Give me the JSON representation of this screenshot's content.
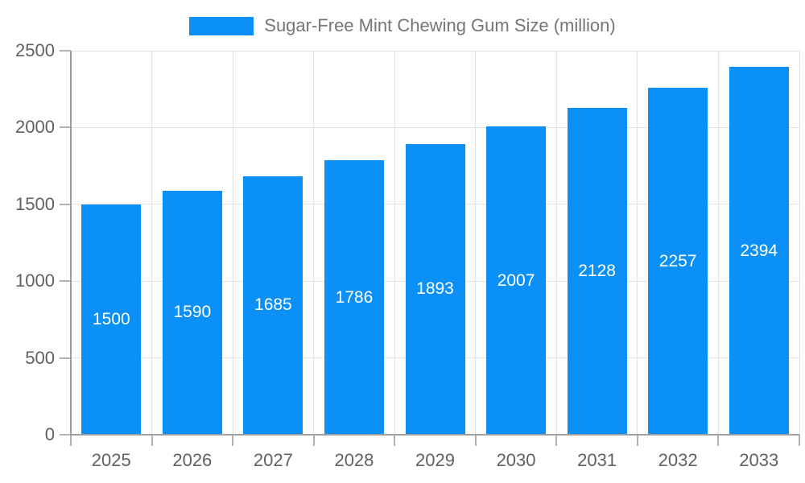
{
  "chart_data": {
    "type": "bar",
    "title": "Sugar-Free Mint Chewing Gum Size (million)",
    "legend": [
      "Sugar-Free Mint Chewing Gum Size (million)"
    ],
    "legend_position": "top-center",
    "categories": [
      "2025",
      "2026",
      "2027",
      "2028",
      "2029",
      "2030",
      "2031",
      "2032",
      "2033"
    ],
    "series": [
      {
        "name": "Sugar-Free Mint Chewing Gum Size (million)",
        "values": [
          1500,
          1590,
          1685,
          1786,
          1893,
          2007,
          2128,
          2257,
          2394
        ]
      }
    ],
    "data_labels": [
      "1500",
      "1590",
      "1685",
      "1786",
      "1893",
      "2007",
      "2128",
      "2257",
      "2394"
    ],
    "data_label_position": "inside-center",
    "xlabel": "",
    "ylabel": "",
    "ylim": [
      0,
      2500
    ],
    "y_ticks": [
      0,
      500,
      1000,
      1500,
      2000,
      2500
    ],
    "grid": true
  },
  "colors": {
    "bar": "#0b90f7",
    "bar_label_text": "#ffffff",
    "legend_text": "#757575",
    "axis_label_text": "#616161",
    "axis_line": "#9e9e9e",
    "tick": "#b3b3b3",
    "gridline": "#e4e4e4",
    "background": "#ffffff"
  }
}
